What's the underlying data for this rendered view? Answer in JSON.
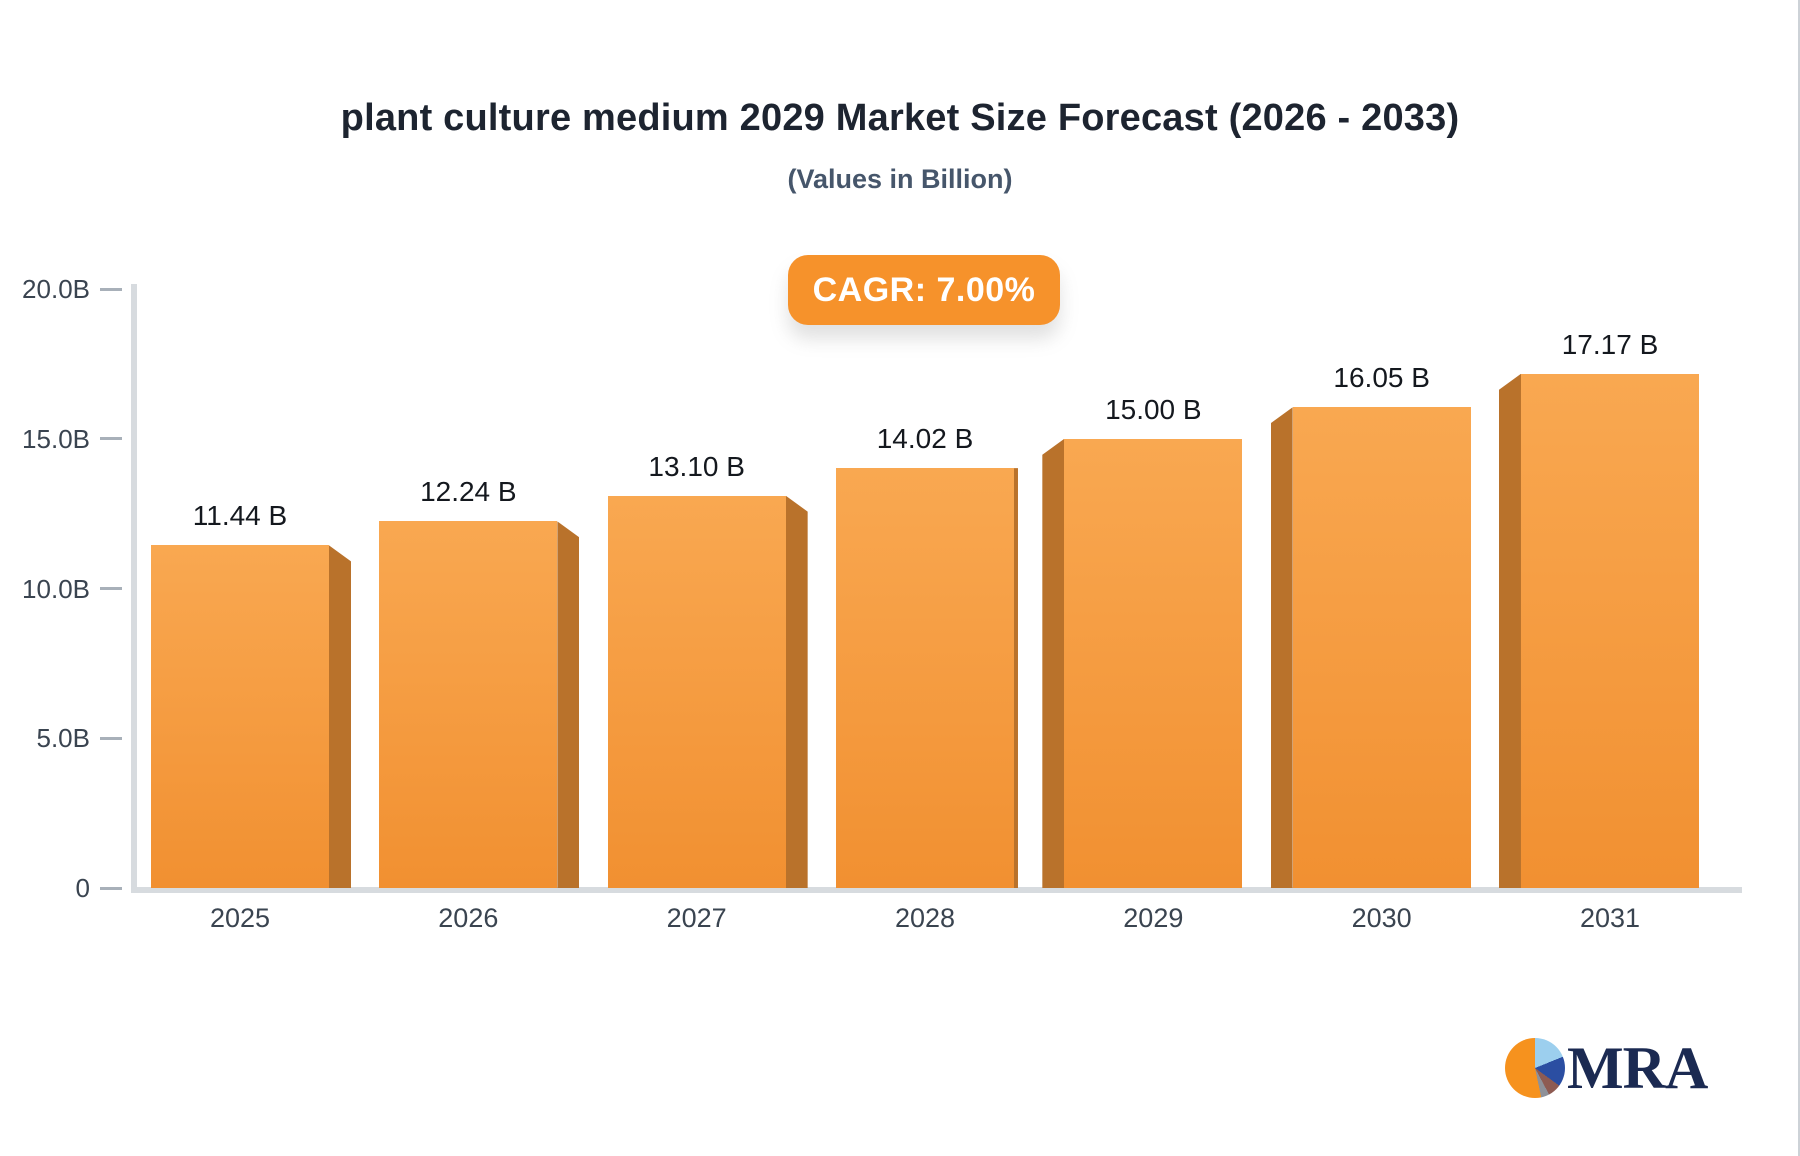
{
  "header": {
    "title": "plant culture medium 2029 Market Size Forecast (2026 - 2033)",
    "subtitle": "(Values in Billion)"
  },
  "badge": {
    "label": "CAGR: 7.00%",
    "bg_color": "#f6922b",
    "text_color": "#ffffff"
  },
  "chart_data": {
    "type": "bar",
    "title": "plant culture medium 2029 Market Size Forecast (2026 - 2033)",
    "subtitle": "(Values in Billion)",
    "cagr_annotation": "CAGR: 7.00%",
    "categories": [
      "2025",
      "2026",
      "2027",
      "2028",
      "2029",
      "2030",
      "2031"
    ],
    "values": [
      11.44,
      12.24,
      13.1,
      14.02,
      15.0,
      16.05,
      17.17
    ],
    "value_labels": [
      "11.44 B",
      "12.24 B",
      "13.10 B",
      "14.02 B",
      "15.00 B",
      "16.05 B",
      "17.17 B"
    ],
    "unit": "B",
    "ylim": [
      0,
      20
    ],
    "yticks": [
      {
        "value": 0,
        "label": "0"
      },
      {
        "value": 5,
        "label": "5.0B"
      },
      {
        "value": 10,
        "label": "10.0B"
      },
      {
        "value": 15,
        "label": "15.0B"
      },
      {
        "value": 20,
        "label": "20.0B"
      }
    ],
    "grid": false,
    "legend": "none",
    "style_3d": true,
    "bar_color_top": "#f9a851",
    "bar_color_bottom": "#f19031",
    "bar_side_color": "#b9722b",
    "axis_color": "#d7dbdf",
    "tick_color": "#a8b0b9"
  },
  "logo": {
    "text": "MRA",
    "pie_slices": [
      {
        "name": "light-blue",
        "color": "#9ccfee",
        "from": 0,
        "to": 68
      },
      {
        "name": "dark-blue",
        "color": "#2b4ea2",
        "from": 68,
        "to": 126
      },
      {
        "name": "maroon",
        "color": "#8e5b52",
        "from": 126,
        "to": 152
      },
      {
        "name": "gray",
        "color": "#8e9199",
        "from": 152,
        "to": 168
      },
      {
        "name": "orange",
        "color": "#f6921e",
        "from": 168,
        "to": 360
      }
    ]
  }
}
